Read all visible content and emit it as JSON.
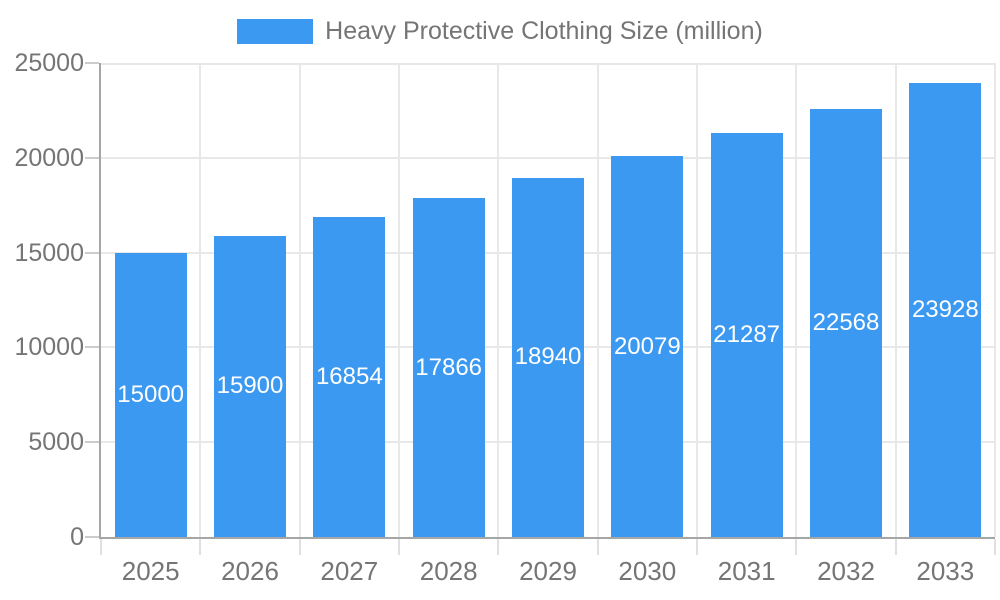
{
  "chart_data": {
    "type": "bar",
    "title": "Heavy Protective Clothing Size (million)",
    "categories": [
      "2025",
      "2026",
      "2027",
      "2028",
      "2029",
      "2030",
      "2031",
      "2032",
      "2033"
    ],
    "series": [
      {
        "name": "Heavy Protective Clothing Size (million)",
        "values": [
          15000,
          15900,
          16854,
          17866,
          18940,
          20079,
          21287,
          22568,
          23928
        ],
        "color": "#3b99f1"
      }
    ],
    "xlabel": "",
    "ylabel": "",
    "ylim": [
      0,
      25000
    ],
    "yticks": [
      0,
      5000,
      10000,
      15000,
      20000,
      25000
    ],
    "ytick_labels": [
      "0",
      "5000",
      "10000",
      "15000",
      "20000",
      "25000"
    ],
    "grid": "on",
    "legend_position": "top",
    "value_labels_shown": true,
    "value_label_position": "inside-center"
  },
  "colors": {
    "bar": "#3b99f1",
    "bar_value_label": "#ffffff",
    "axis_text": "#757575",
    "legend_text": "#757575",
    "gridline": "#e8e8e8",
    "axis_line": "#a6a6a6",
    "background": "#ffffff"
  }
}
